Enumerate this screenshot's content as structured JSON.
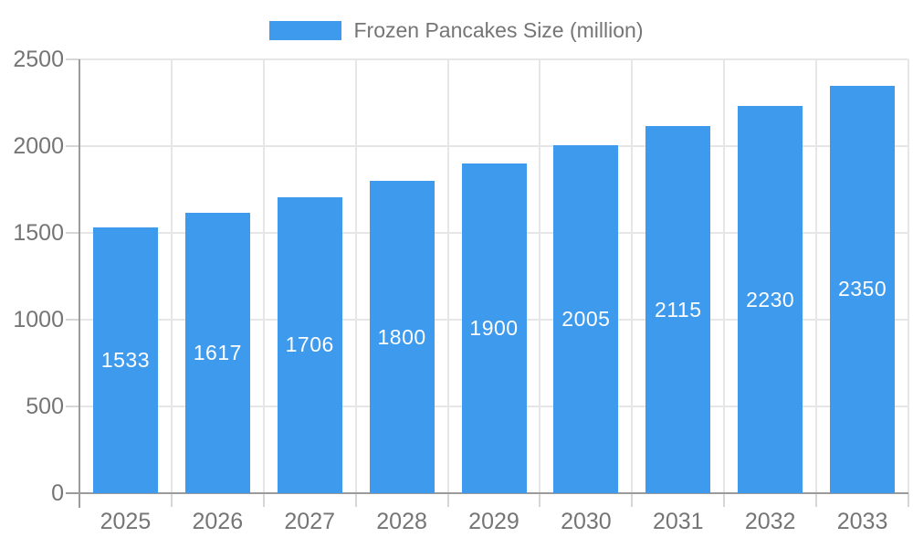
{
  "legend": {
    "label": "Frozen Pancakes Size (million)"
  },
  "colors": {
    "bar": "#3D9AED",
    "gridline": "#E6E6E6",
    "tick": "#D6D6D6",
    "axis": "#9B9B9B",
    "axis_label": "#757575",
    "value_label": "#FFFFFF",
    "background": "#FFFFFF"
  },
  "chart_data": {
    "type": "bar",
    "title": "",
    "series_name": "Frozen Pancakes Size (million)",
    "categories": [
      "2025",
      "2026",
      "2027",
      "2028",
      "2029",
      "2030",
      "2031",
      "2032",
      "2033"
    ],
    "values": [
      1533,
      1617,
      1706,
      1800,
      1900,
      2005,
      2115,
      2230,
      2350
    ],
    "xlabel": "",
    "ylabel": "",
    "ylim": [
      0,
      2500
    ],
    "yticks": [
      0,
      500,
      1000,
      1500,
      2000,
      2500
    ],
    "grid": true,
    "legend_position": "top",
    "value_labels": "inside-center"
  }
}
